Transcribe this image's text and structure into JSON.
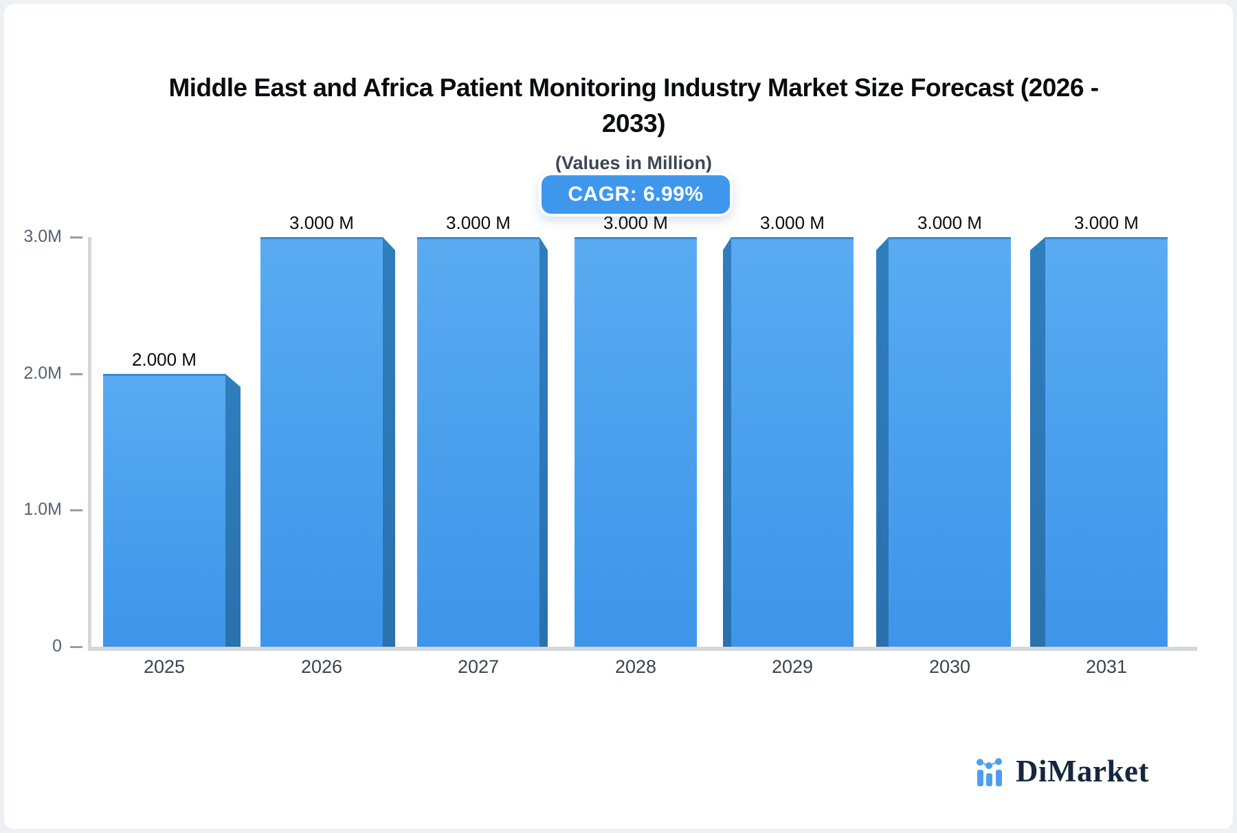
{
  "header": {
    "title_line1": "Middle East and Africa Patient Monitoring Industry Market Size Forecast (2026 -",
    "title_line2": "2033)",
    "subtitle": "(Values in Million)",
    "cagr_label": "CAGR: 6.99%"
  },
  "chart_data": {
    "type": "bar",
    "title": "Middle East and Africa Patient Monitoring Industry Market Size Forecast (2026 - 2033)",
    "subtitle": "(Values in Million)",
    "cagr_pct": 6.99,
    "categories": [
      "2025",
      "2026",
      "2027",
      "2028",
      "2029",
      "2030",
      "2031"
    ],
    "values": [
      2.0,
      3.0,
      3.0,
      3.0,
      3.0,
      3.0,
      3.0
    ],
    "bar_labels": [
      "2.000 M",
      "3.000 M",
      "3.000 M",
      "3.000 M",
      "3.000 M",
      "3.000 M",
      "3.000 M"
    ],
    "unit": "Million",
    "y_ticks": [
      {
        "value": 0,
        "label": "0"
      },
      {
        "value": 1,
        "label": "1.0M"
      },
      {
        "value": 2,
        "label": "2.0M"
      },
      {
        "value": 3,
        "label": "3.0M"
      }
    ],
    "ylim": [
      0,
      3.2
    ],
    "grid": false,
    "legend": false,
    "colors": {
      "bar_top": "#5aabf1",
      "bar_bottom": "#3e95e9",
      "bar_side": "#2d79b8",
      "badge": "#3e97ed",
      "axis": "#d4d7dc"
    }
  },
  "footer": {
    "brand": "DiMarket",
    "logo_icon": "bar-chart-logo-icon"
  }
}
